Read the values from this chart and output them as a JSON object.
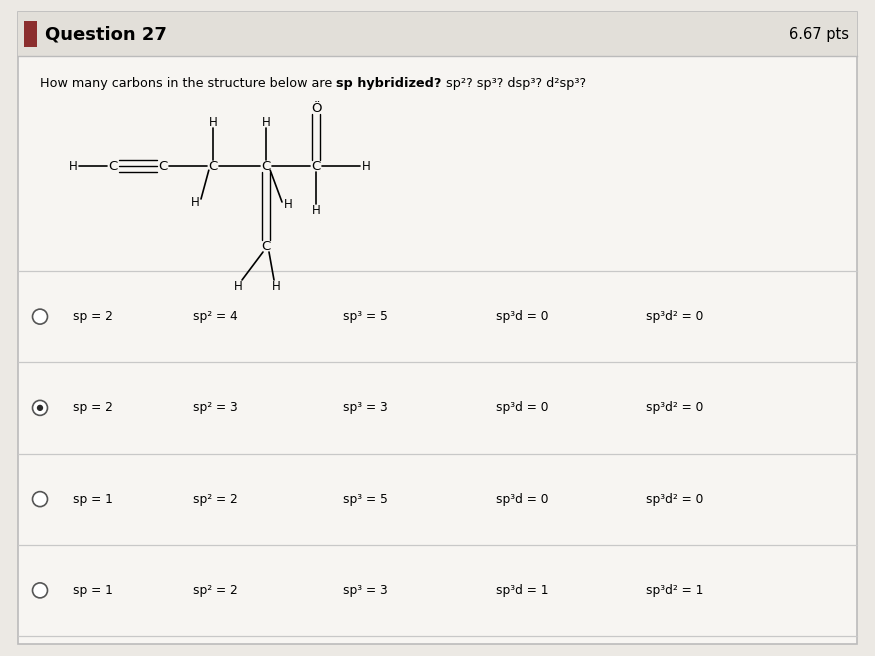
{
  "title": "Question 27",
  "pts": "6.67 pts",
  "bg_color": "#ece9e4",
  "card_color": "#f7f5f2",
  "header_color": "#e2dfd9",
  "border_color": "#bbbbbb",
  "rows": [
    {
      "selected": false,
      "cols": [
        "sp = 2",
        "sp² = 4",
        "sp³ = 5",
        "sp³d = 0",
        "sp³d² = 0"
      ]
    },
    {
      "selected": true,
      "cols": [
        "sp = 2",
        "sp² = 3",
        "sp³ = 3",
        "sp³d = 0",
        "sp³d² = 0"
      ]
    },
    {
      "selected": false,
      "cols": [
        "sp = 1",
        "sp² = 2",
        "sp³ = 5",
        "sp³d = 0",
        "sp³d² = 0"
      ]
    },
    {
      "selected": false,
      "cols": [
        "sp = 1",
        "sp² = 2",
        "sp³ = 3",
        "sp³d = 1",
        "sp³d² = 1"
      ]
    }
  ]
}
